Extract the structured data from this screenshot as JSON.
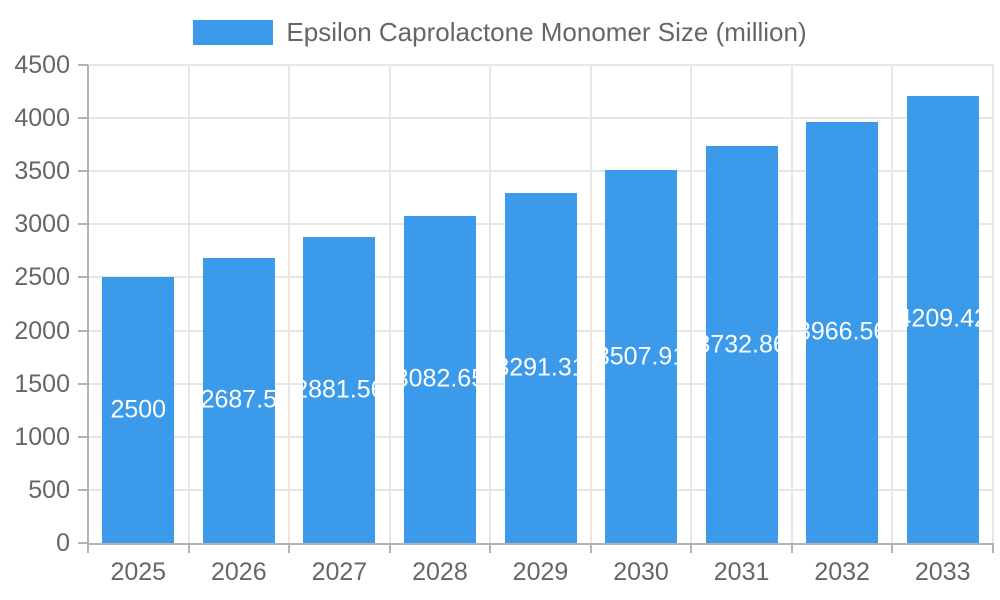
{
  "legend": {
    "label": "Epsilon Caprolactone Monomer Size (million)"
  },
  "chart_data": {
    "type": "bar",
    "title": "Epsilon Caprolactone Monomer Size (million)",
    "legend_position": "top",
    "grid": true,
    "categories": [
      "2025",
      "2026",
      "2027",
      "2028",
      "2029",
      "2030",
      "2031",
      "2032",
      "2033"
    ],
    "series": [
      {
        "name": "Epsilon Caprolactone Monomer Size (million)",
        "color": "#3B9AEA",
        "values": [
          2500,
          2687.5,
          2881.56,
          3082.65,
          3291.31,
          3507.91,
          3732.86,
          3966.56,
          4209.42
        ],
        "bar_labels": [
          "2500",
          "2687.5",
          "2881.56",
          "3082.65",
          "3291.31",
          "3507.91",
          "3732.86",
          "3966.56",
          "4209.42"
        ]
      }
    ],
    "xlabel": "",
    "ylabel": "",
    "ylim": [
      0,
      4500
    ],
    "y_ticks": [
      0,
      500,
      1000,
      1500,
      2000,
      2500,
      3000,
      3500,
      4000,
      4500
    ]
  },
  "colors": {
    "bar": "#3B9AEA",
    "bar_label_text": "#ffffff",
    "axis_text": "#666666",
    "gridline": "#e6e6e6",
    "axis_line": "#b3b3b3",
    "background": "#ffffff"
  }
}
